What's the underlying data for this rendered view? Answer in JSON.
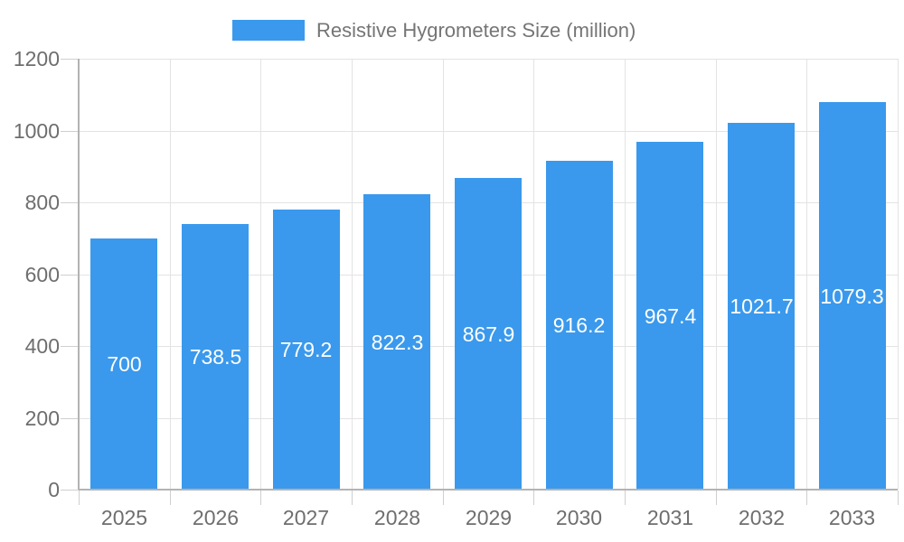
{
  "chart_data": {
    "type": "bar",
    "title": "Resistive Hygrometers Size (million)",
    "categories": [
      "2025",
      "2026",
      "2027",
      "2028",
      "2029",
      "2030",
      "2031",
      "2032",
      "2033"
    ],
    "series": [
      {
        "name": "Resistive Hygrometers Size (million)",
        "values": [
          700,
          738.5,
          779.2,
          822.3,
          867.9,
          916.2,
          967.4,
          1021.7,
          1079.3
        ]
      }
    ],
    "value_labels": [
      "700",
      "738.5",
      "779.2",
      "822.3",
      "867.9",
      "916.2",
      "967.4",
      "1021.7",
      "1079.3"
    ],
    "xlabel": "",
    "ylabel": "",
    "ylim": [
      0,
      1200
    ],
    "y_ticks": [
      0,
      200,
      400,
      600,
      800,
      1000,
      1200
    ],
    "grid": true,
    "legend_position": "top",
    "colors": {
      "bar": "#3A99EC",
      "gridline": "#E3E3E3",
      "tick": "#CFCFCF",
      "axis": "#B3B3B3",
      "axis_text": "#6E6E6E",
      "legend_text": "#757575",
      "value_text": "#FFFFFF",
      "background": "#FFFFFF"
    }
  }
}
